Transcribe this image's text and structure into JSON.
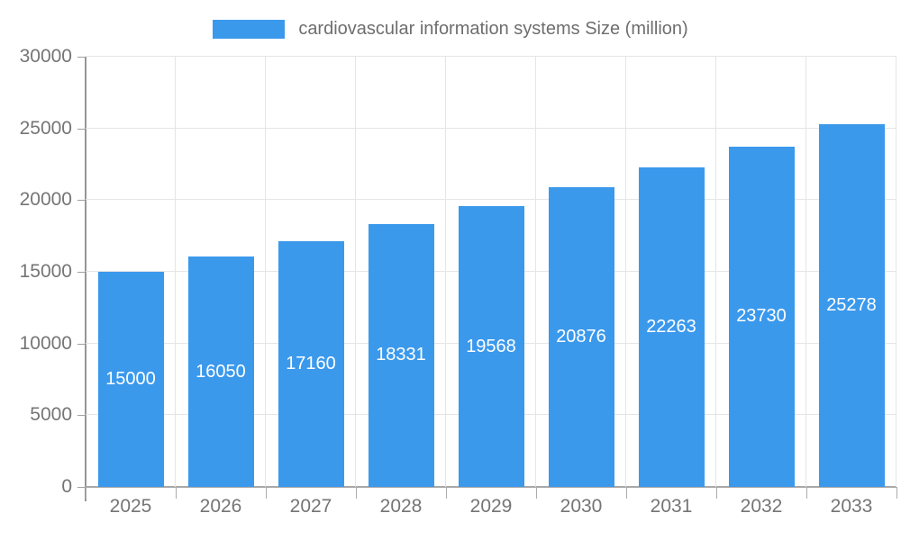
{
  "legend": {
    "label": "cardiovascular information systems Size (million)",
    "swatch_color": "#3b99ec"
  },
  "chart_data": {
    "type": "bar",
    "title": "cardiovascular information systems Size (million)",
    "categories": [
      "2025",
      "2026",
      "2027",
      "2028",
      "2029",
      "2030",
      "2031",
      "2032",
      "2033"
    ],
    "series": [
      {
        "name": "cardiovascular information systems Size (million)",
        "values": [
          15000,
          16050,
          17160,
          18331,
          19568,
          20876,
          22263,
          23730,
          25278
        ]
      }
    ],
    "xlabel": "",
    "ylabel": "",
    "ylim": [
      0,
      30000
    ],
    "yticks": [
      0,
      5000,
      10000,
      15000,
      20000,
      25000,
      30000
    ],
    "grid": true,
    "legend_position": "top",
    "bar_color": "#3b99ec",
    "bar_label_color": "#ffffff",
    "axis_text_color": "#757575"
  }
}
